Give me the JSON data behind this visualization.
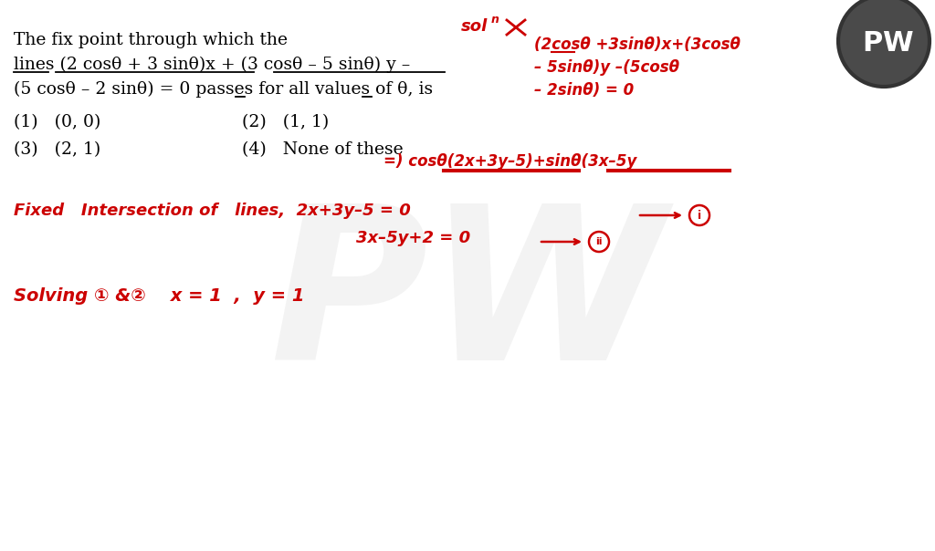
{
  "background_color": "#ffffff",
  "figsize": [
    10.24,
    6.04
  ],
  "dpi": 100,
  "black": "#000000",
  "red": "#cc0000",
  "printed": {
    "line1": "The fix point through which the",
    "line2": "lines (2 cosθ + 3 sinθ)x + (3 cosθ – 5 sinθ) y –",
    "line3": "(5 cosθ – 2 sinθ) = 0 passes for all values of θ, is",
    "opt1": "(1)   (0, 0)",
    "opt2": "(2)   (1, 1)",
    "opt3": "(3)   (2, 1)",
    "opt4": "(4)   None of these"
  },
  "red_top_label": "sol",
  "red_top_exp": "n",
  "red_rhs1": "(2cosθ +3sinθ)x+(3cosθ",
  "red_rhs2": "– 5sinθ)y –(5cosθ",
  "red_rhs3": "– 2sinθ) = 0",
  "red_factored": "=) cosθ(2x+3y–5)+sinθ(3x–5y",
  "red_fixed1": "Fixed   Intersection of   lines,  2x+3y–5 = 0",
  "red_fixed2": "3x–5y+2 = 0",
  "red_solving": "Solving ① &②    x = 1  ,  y = 1"
}
